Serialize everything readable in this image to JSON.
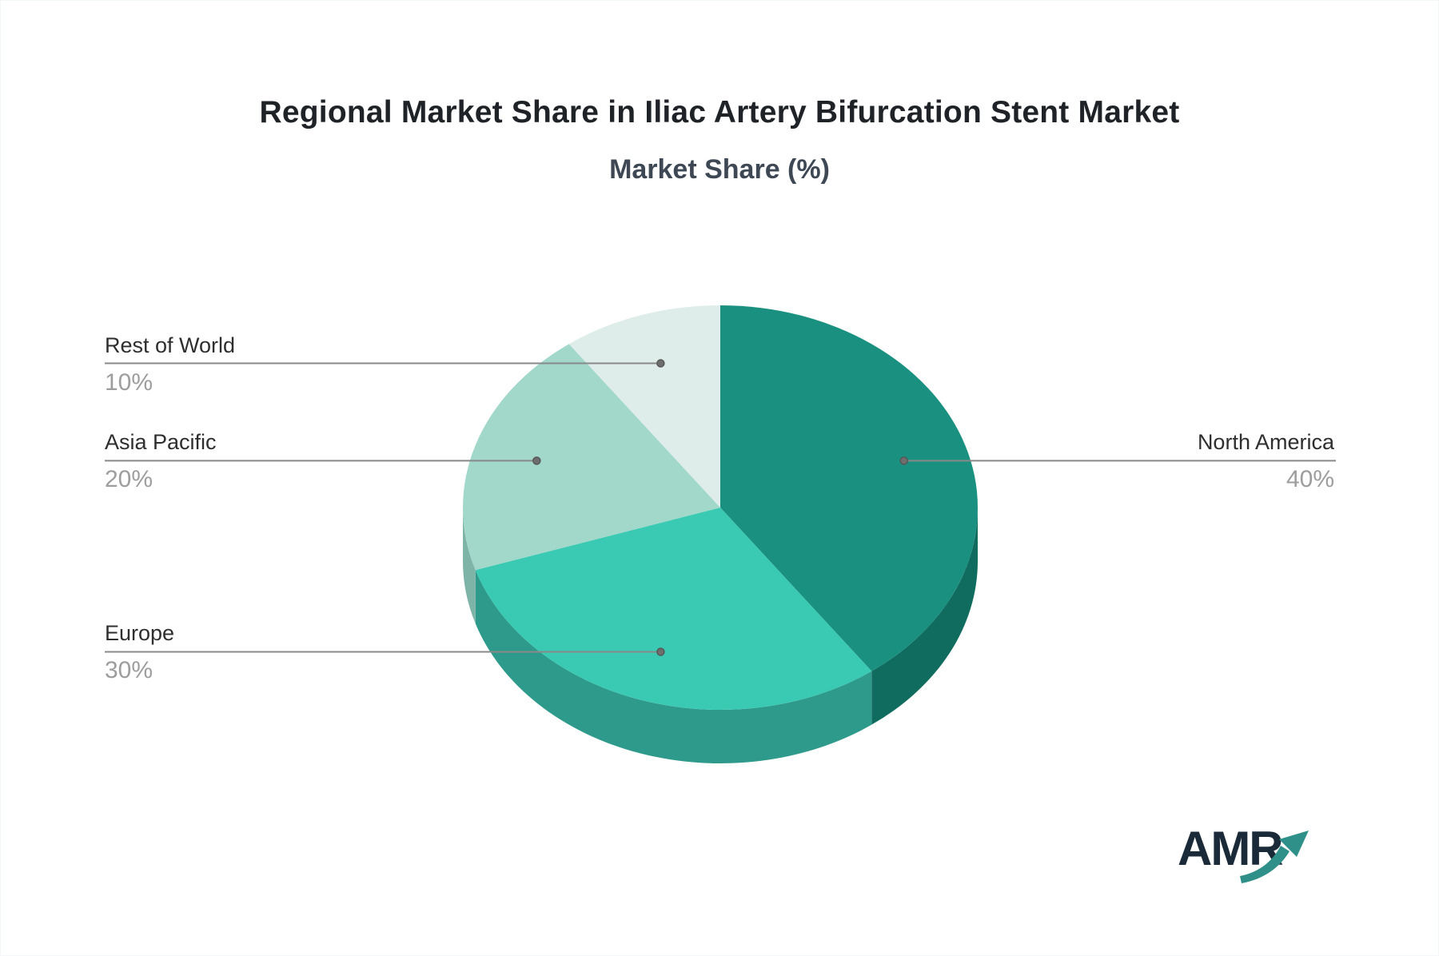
{
  "chart_data": {
    "type": "pie",
    "style": "3d",
    "title": "Regional Market Share in Iliac Artery Bifurcation Stent Market",
    "subtitle": "Market Share (%)",
    "unit": "%",
    "start_angle_deg": 0,
    "direction": "clockwise",
    "legend_position": "callout-labels",
    "slices": [
      {
        "label": "North America",
        "value": 40,
        "display": "40%",
        "color": "#1a9080",
        "side_color": "#106c5f",
        "label_side": "right"
      },
      {
        "label": "Europe",
        "value": 30,
        "display": "30%",
        "color": "#3ac9b3",
        "side_color": "#2e9a8c",
        "label_side": "left"
      },
      {
        "label": "Asia Pacific",
        "value": 20,
        "display": "20%",
        "color": "#a1d8ca",
        "side_color": "#7eb4a8",
        "label_side": "left"
      },
      {
        "label": "Rest of World",
        "value": 10,
        "display": "10%",
        "color": "#deede9",
        "label_side": "left"
      }
    ],
    "leader_line_color": "#898989",
    "leader_dot_color": "#6e6e6e",
    "label_color": "#2e2e2e",
    "value_color": "#9d9d9d"
  },
  "logo": {
    "text": "AMR",
    "text_color": "#1b2a38",
    "arrow_color": "#2e9088"
  }
}
